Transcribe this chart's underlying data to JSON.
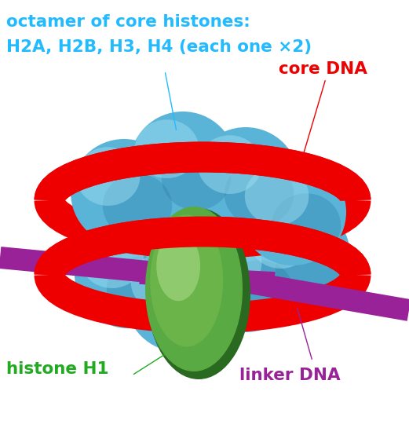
{
  "bg_color": "#ffffff",
  "histone_blue_base": "#5ab4d8",
  "histone_blue_light": "#9adcf0",
  "histone_blue_dark": "#2878a0",
  "histone_blue_deeper": "#1a5a80",
  "dna_red": "#ee0000",
  "linker_purple": "#992299",
  "h1_green_base": "#5aaa44",
  "h1_green_light": "#aada88",
  "h1_green_dark": "#2a6a20",
  "h1_green_mid": "#7abf50",
  "text_blue": "#22bbff",
  "text_red": "#ee0000",
  "text_green": "#22aa22",
  "text_purple": "#992299",
  "label_octamer_line1": "octamer of core histones:",
  "label_octamer_line2": "H2A, H2B, H3, H4 (each one ×2)",
  "label_core_dna": "core DNA",
  "label_histone_h1": "histone H1",
  "label_linker_dna": "linker DNA",
  "figsize": [
    5.21,
    5.45
  ],
  "dpi": 100
}
